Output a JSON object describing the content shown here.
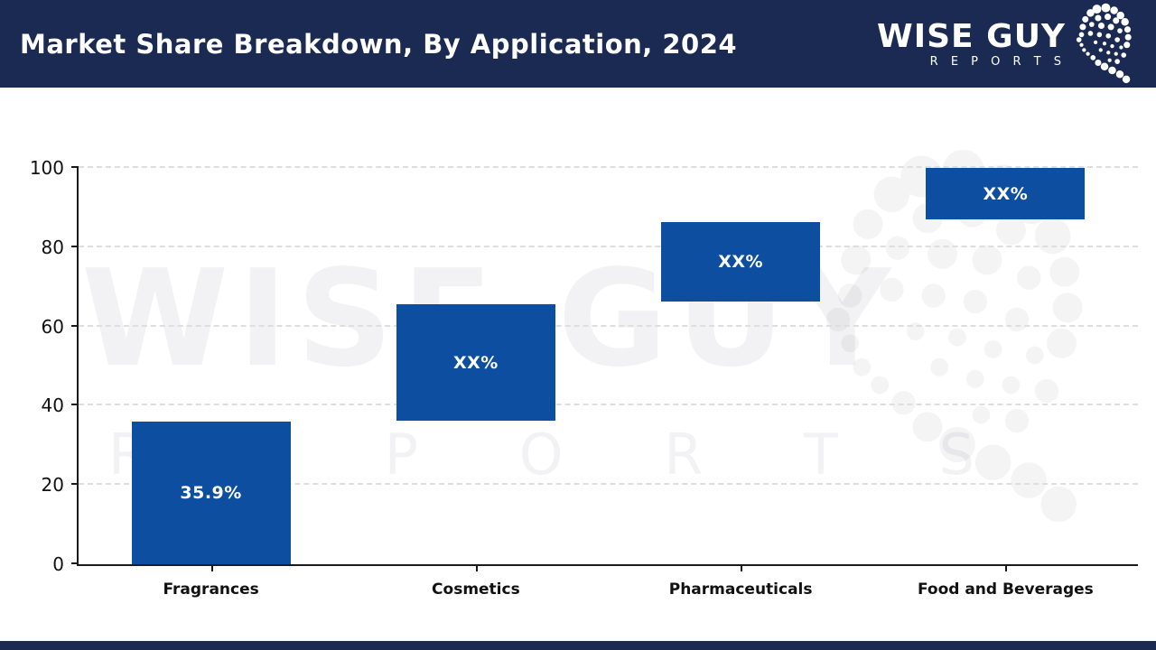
{
  "header": {
    "title": "Market Share Breakdown, By Application, 2024"
  },
  "logo": {
    "name": "WISE GUY",
    "sub": "R E P O R T S"
  },
  "watermark": {
    "line1": "WISE GUY",
    "line2": "R E P O R T S"
  },
  "colors": {
    "header_bg": "#1a2a52",
    "bar": "#0d4ea0",
    "bar_label_text": "#ffffff",
    "gridline": "#dedede",
    "axis": "#1a1a1a"
  },
  "chart_data": {
    "type": "bar",
    "subtype": "waterfall",
    "title": "Market Share Breakdown, By Application, 2024",
    "categories": [
      "Fragrances",
      "Cosmetics",
      "Pharmaceuticals",
      "Food and Beverages"
    ],
    "bars": [
      {
        "category": "Fragrances",
        "start": 0,
        "end": 35.9,
        "label": "35.9%"
      },
      {
        "category": "Cosmetics",
        "start": 36.3,
        "end": 65.5,
        "label": "XX%"
      },
      {
        "category": "Pharmaceuticals",
        "start": 66.3,
        "end": 86.3,
        "label": "XX%"
      },
      {
        "category": "Food and Beverages",
        "start": 87.0,
        "end": 100.0,
        "label": "XX%"
      }
    ],
    "xlabel": "",
    "ylabel": "",
    "ylim": [
      0,
      100
    ],
    "yticks": [
      0,
      20,
      40,
      60,
      80,
      100
    ],
    "grid": "horizontal-dashed",
    "legend": "none",
    "bar_color": "#0d4ea0"
  }
}
